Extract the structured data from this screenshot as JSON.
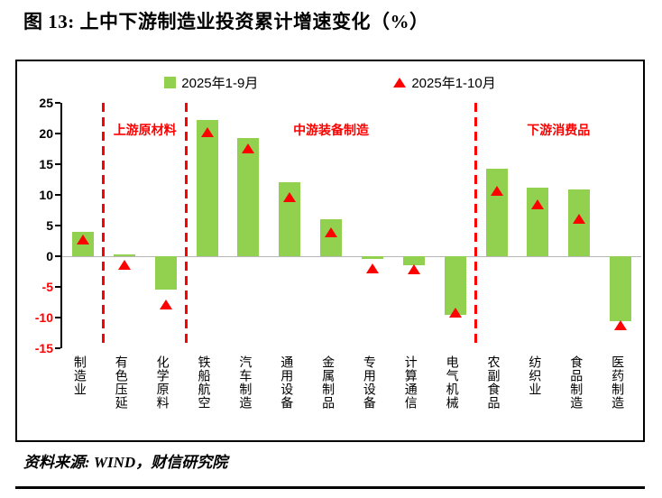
{
  "page": {
    "title": "图 13:  上中下游制造业投资累计增速变化（%）",
    "source": "资料来源: WIND，财信研究院"
  },
  "chart_data": {
    "type": "bar",
    "title": "上中下游制造业投资累计增速变化（%）",
    "xlabel": "",
    "ylabel": "",
    "ylim": [
      -15,
      25
    ],
    "yticks": [
      25,
      20,
      15,
      10,
      5,
      0,
      -5,
      -10,
      -15
    ],
    "grid": false,
    "legend_position": "top",
    "bar_color": "#92D050",
    "marker_color": "#FF0000",
    "negative_tick_color": "#FF0000",
    "categories": [
      "制造业",
      "有色压延",
      "化学原料",
      "铁船航空",
      "汽车制造",
      "通用设备",
      "金属制品",
      "专用设备",
      "计算通信",
      "电气机械",
      "农副食品",
      "纺织业",
      "食品制造",
      "医药制造"
    ],
    "series": [
      {
        "name": "2025年1-9月",
        "type": "bar",
        "color": "#92D050",
        "values": [
          4.0,
          0.3,
          -5.5,
          22.2,
          19.2,
          12.0,
          6.1,
          -0.5,
          -1.5,
          -9.5,
          14.3,
          11.2,
          10.9,
          -10.6
        ]
      },
      {
        "name": "2025年1-10月",
        "type": "triangle",
        "color": "#FF0000",
        "values": [
          2.7,
          -1.5,
          -8.0,
          20.2,
          17.5,
          9.5,
          3.8,
          -2.0,
          -2.2,
          -9.3,
          10.6,
          8.4,
          6.0,
          -11.3
        ]
      }
    ],
    "group_separators": [
      1,
      3,
      10
    ],
    "groups": [
      {
        "label": "上游原材料",
        "start": 1,
        "end": 2
      },
      {
        "label": "中游装备制造",
        "start": 3,
        "end": 9
      },
      {
        "label": "下游消费品",
        "start": 10,
        "end": 13
      }
    ]
  }
}
